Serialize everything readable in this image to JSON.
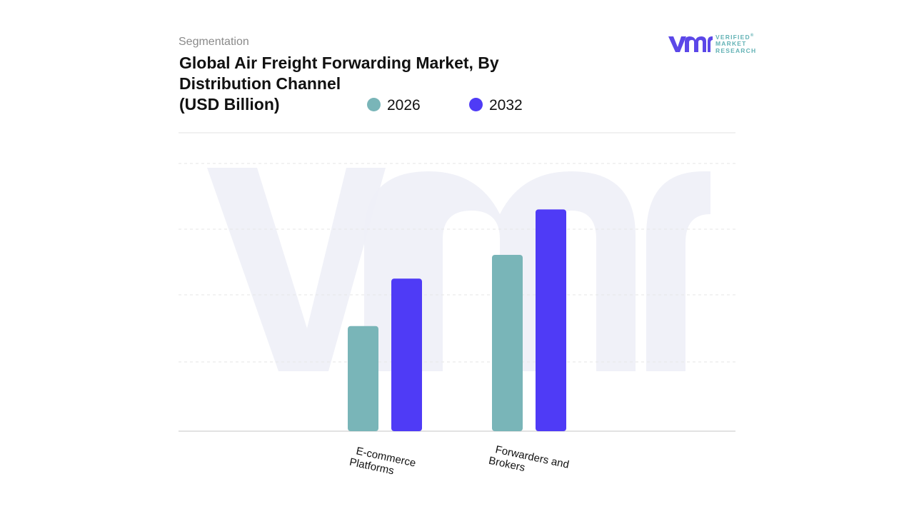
{
  "header": {
    "eyebrow": "Segmentation",
    "title_lines": [
      "Global Air Freight Forwarding Market, By",
      "Distribution Channel",
      "(USD Billion)"
    ]
  },
  "logo": {
    "lines": [
      "VERIFIED",
      "MARKET",
      "RESEARCH"
    ],
    "registered_mark": "®",
    "color_primary": "#5b47e8",
    "color_text": "#62b2b5"
  },
  "chart_data": {
    "type": "bar",
    "title": "Global Air Freight Forwarding Market, By Distribution Channel (USD Billion)",
    "categories": [
      "E-commerce Platforms",
      "Forwarders and Brokers"
    ],
    "series": [
      {
        "name": "2026",
        "color": "#79b5b8",
        "values": [
          15.5,
          26.0
        ]
      },
      {
        "name": "2032",
        "color": "#4f3bf6",
        "values": [
          22.5,
          32.7
        ]
      }
    ],
    "ylim": [
      0,
      44
    ],
    "grid": true,
    "legend_position": "top",
    "xlabel": "",
    "ylabel": ""
  }
}
